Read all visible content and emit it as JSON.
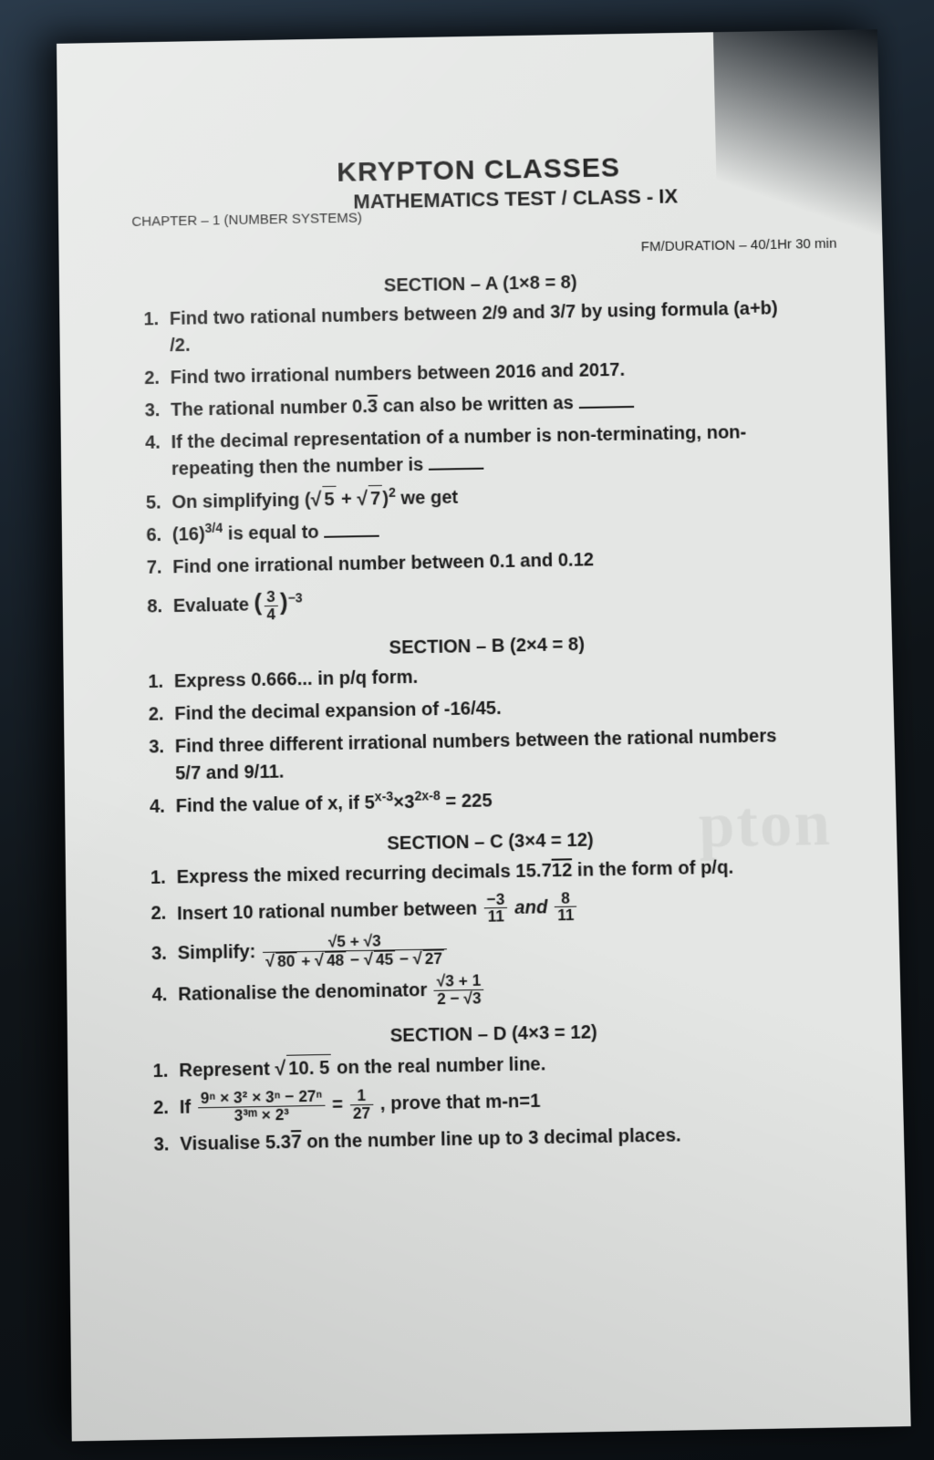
{
  "header": {
    "title": "KRYPTON CLASSES",
    "subtitle": "MATHEMATICS TEST / CLASS - IX",
    "chapter": "CHAPTER – 1 (NUMBER SYSTEMS)",
    "duration": "FM/DURATION – 40/1Hr 30 min"
  },
  "sections": {
    "A": {
      "head": "SECTION – A (1×8 = 8)",
      "q1a": "Find two rational numbers between 2/9 and 3/7 by using formula (a+b)",
      "q1b": "/2.",
      "q2": "Find two irrational numbers between 2016 and 2017.",
      "q3a": "The rational number 0.",
      "q3b": "3",
      "q3c": " can also be written as ",
      "q4a": "If the decimal representation of a number is non-terminating, non-",
      "q4b": "repeating then the number is ",
      "q5a": "On simplifying",
      "q5b": " we get",
      "q6a": "(16)",
      "q6b": " is equal to ",
      "q7": "Find one irrational number between 0.1 and 0.12",
      "q8": "Evaluate "
    },
    "B": {
      "head": "SECTION – B (2×4 = 8)",
      "q1": "Express 0.666... in p/q form.",
      "q2": "Find the decimal expansion of -16/45.",
      "q3a": "Find three different irrational numbers between the rational numbers",
      "q3b": "5/7 and 9/11.",
      "q4a": "Find the value of x, if 5",
      "q4b": "×3",
      "q4c": " = 225"
    },
    "C": {
      "head": "SECTION – C (3×4 = 12)",
      "q1a": "Express the mixed recurring decimals 15.7",
      "q1b": "12",
      "q1c": " in the form of p/q.",
      "q2a": "Insert 10 rational number between ",
      "q2b": " and ",
      "q3": "Simplify: ",
      "q4": "Rationalise the denominator "
    },
    "D": {
      "head": "SECTION – D (4×3 = 12)",
      "q1a": "Represent ",
      "q1b": " on the real number line.",
      "q2a": "If ",
      "q2b": ", prove that m-n=1",
      "q3a": "Visualise 5.3",
      "q3b": "7",
      "q3c": " on the number line up to 3 decimal places."
    }
  },
  "watermark": "pton",
  "math": {
    "sqrt5": "5",
    "sqrt7": "7",
    "sqrt3": "3",
    "sqrt80": "80",
    "sqrt48": "48",
    "sqrt45": "45",
    "sqrt27": "27",
    "sqrt10_5": "10. 5",
    "exp_3_4": "3/4",
    "exp_neg3": "−3",
    "frac_3_4_n": "3",
    "frac_3_4_d": "4",
    "exp_x3": "x-3",
    "exp_2x8": "2x-8",
    "frac_n3_11_n": "−3",
    "frac_n3_11_d": "11",
    "frac_8_11_n": "8",
    "frac_8_11_d": "11",
    "c3_num": "√5 + √3",
    "c4_num": "√3 + 1",
    "c4_den": "2 − √3",
    "d2_rhs_n": "1",
    "d2_rhs_d": "27",
    "d2_lhs_num": "9ⁿ × 3² × 3ⁿ − 27ⁿ",
    "d2_lhs_den": "3³ᵐ × 2³"
  }
}
